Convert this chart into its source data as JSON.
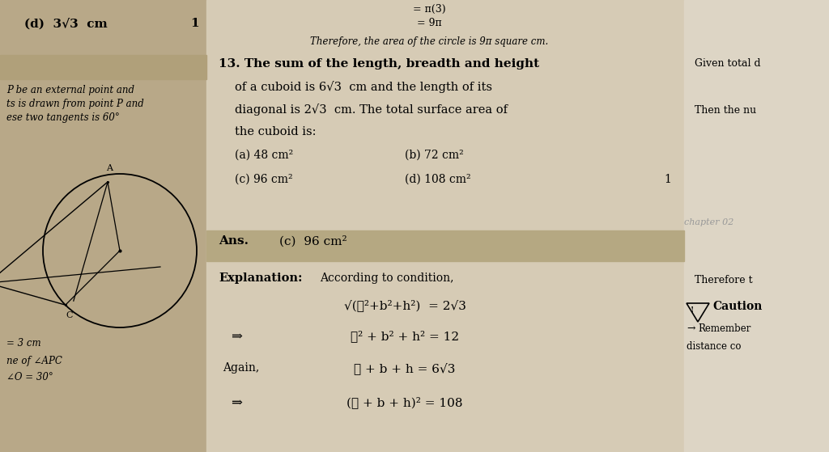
{
  "bg_left": "#b8a888",
  "bg_center": "#d6cbb5",
  "bg_right": "#ddd5c5",
  "bg_ans_band": "#b5a882",
  "top_band_left": "#b0a07a",
  "title_line_top": "= π(3)",
  "title_line2": "= 9π",
  "therefore_line": "Therefore, the area of the circle is 9π square cm.",
  "q13_part1": "13. The sum of the length, breadth and height",
  "q13_line2": "of a cuboid is 6√3  cm and the length of its",
  "q13_line3": "diagonal is 2√3  cm. The total surface area of",
  "q13_line4": "the cuboid is:",
  "option_a": "(a) 48 cm²",
  "option_b": "(b) 72 cm²",
  "option_c": "(c) 96 cm²",
  "option_d": "(d) 108 cm²",
  "option_d_mark": "1",
  "ans_label": "Ans.",
  "ans_value": "(c)  96 cm²",
  "expl_label": "Explanation:",
  "expl_text": "According to condition,",
  "eq1": "√(ℓ²+b²+h²)  = 2√3",
  "arrow1": "⇒",
  "eq2": "ℓ² + b² + h² = 12",
  "again_label": "Again,",
  "eq3": "ℓ + b + h = 6√3",
  "arrow2": "⇒",
  "eq4": "(ℓ + b + h)² = 108",
  "left_d_line": "(d)  3√3  cm",
  "left_d_mark": "1",
  "left_note1": "P be an external point and",
  "left_note2": "ts is drawn from point P and",
  "left_note3": "ese two tangents is 60°",
  "left_label_3cm": "= 3 cm",
  "left_label_apc": "ne of ∠APC",
  "left_label_angle": "∠O = 30°",
  "right_given": "Given total d",
  "right_then": "Then the nu",
  "right_chapter": "chapter 02",
  "right_therefore": "Therefore t",
  "right_caution_title": "Caution",
  "right_remember": "→ Remember",
  "right_distance": "distance co"
}
